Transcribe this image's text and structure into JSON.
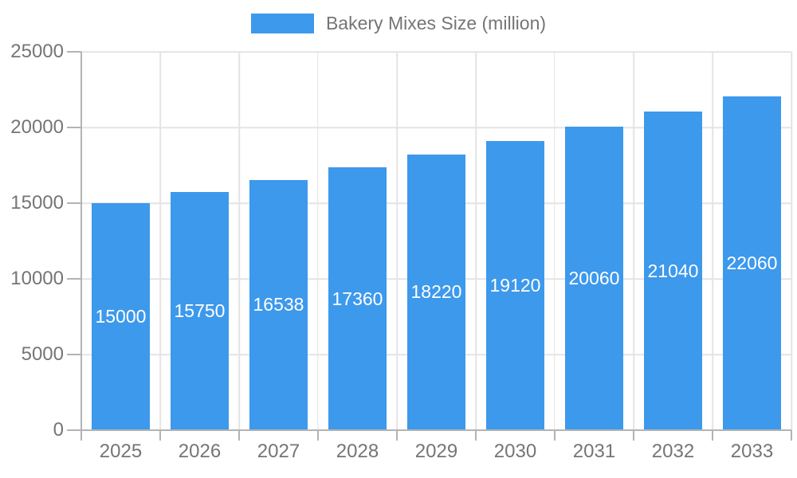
{
  "legend": {
    "label": "Bakery Mixes Size (million)"
  },
  "colors": {
    "bar_fill": "#3D99EC",
    "grid_line": "#E4E4E4",
    "axis_line": "#B3B3B3",
    "axis_label": "#757575",
    "bar_value_label": "#FFFFFF",
    "background": "#FFFFFF"
  },
  "chart_data": {
    "type": "bar",
    "title": "Bakery Mixes Size (million)",
    "series_name": "Bakery Mixes Size (million)",
    "categories": [
      "2025",
      "2026",
      "2027",
      "2028",
      "2029",
      "2030",
      "2031",
      "2032",
      "2033"
    ],
    "values": [
      15000,
      15750,
      16538,
      17360,
      18220,
      19120,
      20060,
      21040,
      22060
    ],
    "xlabel": "",
    "ylabel": "",
    "ylim": [
      0,
      25000
    ],
    "y_ticks": [
      0,
      5000,
      10000,
      15000,
      20000,
      25000
    ],
    "grid": true,
    "legend_position": "top",
    "bar_value_labels_visible": true
  }
}
